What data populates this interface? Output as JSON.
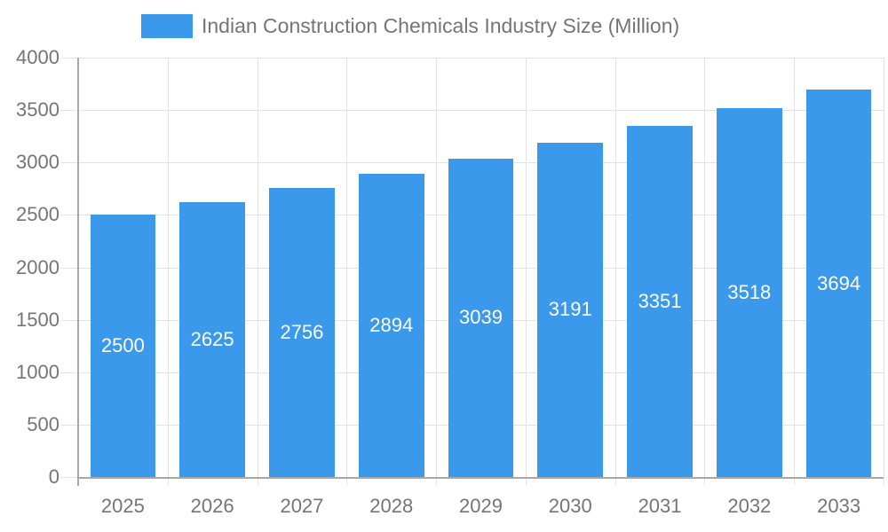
{
  "chart_data": {
    "type": "bar",
    "title": "Indian Construction Chemicals Industry Size (Million)",
    "categories": [
      "2025",
      "2026",
      "2027",
      "2028",
      "2029",
      "2030",
      "2031",
      "2032",
      "2033"
    ],
    "values": [
      2500,
      2625,
      2756,
      2894,
      3039,
      3191,
      3351,
      3518,
      3694
    ],
    "xlabel": "",
    "ylabel": "",
    "ylim": [
      0,
      4000
    ],
    "yticks": [
      0,
      500,
      1000,
      1500,
      2000,
      2500,
      3000,
      3500,
      4000
    ],
    "grid": true,
    "legend_position": "top",
    "bar_color": "#3b99ec",
    "bar_label_color": "#ffffff",
    "axis_text_color": "#757575",
    "gridline_color": "#e3e3e3",
    "axis_line_color": "#a8a8a8"
  }
}
